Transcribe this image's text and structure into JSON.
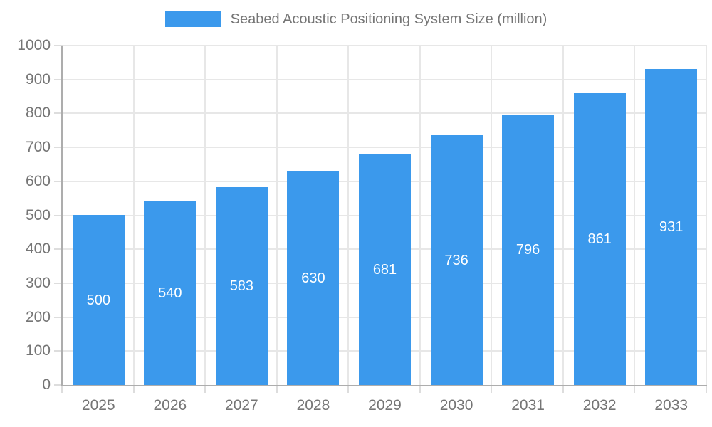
{
  "chart_data": {
    "type": "bar",
    "title": "Seabed Acoustic Positioning System Size (million)",
    "categories": [
      "2025",
      "2026",
      "2027",
      "2028",
      "2029",
      "2030",
      "2031",
      "2032",
      "2033"
    ],
    "values": [
      500,
      540,
      583,
      630,
      681,
      736,
      796,
      861,
      931
    ],
    "series": [
      {
        "name": "Seabed Acoustic Positioning System Size (million)",
        "values": [
          500,
          540,
          583,
          630,
          681,
          736,
          796,
          861,
          931
        ]
      }
    ],
    "value_labels": [
      "500",
      "540",
      "583",
      "630",
      "681",
      "736",
      "796",
      "861",
      "931"
    ],
    "xlabel": "",
    "ylabel": "",
    "ylim": [
      0,
      1000
    ],
    "ytick_step": 100,
    "yticks": [
      0,
      100,
      200,
      300,
      400,
      500,
      600,
      700,
      800,
      900,
      1000
    ],
    "grid": true,
    "legend_position": "top",
    "colors": {
      "bar": "#3b99ec",
      "value_label": "#ffffff",
      "axis": "#adadad",
      "grid": "#e7e7e7",
      "tick": "#dddddd",
      "text": "#757575",
      "background": "#ffffff"
    }
  }
}
